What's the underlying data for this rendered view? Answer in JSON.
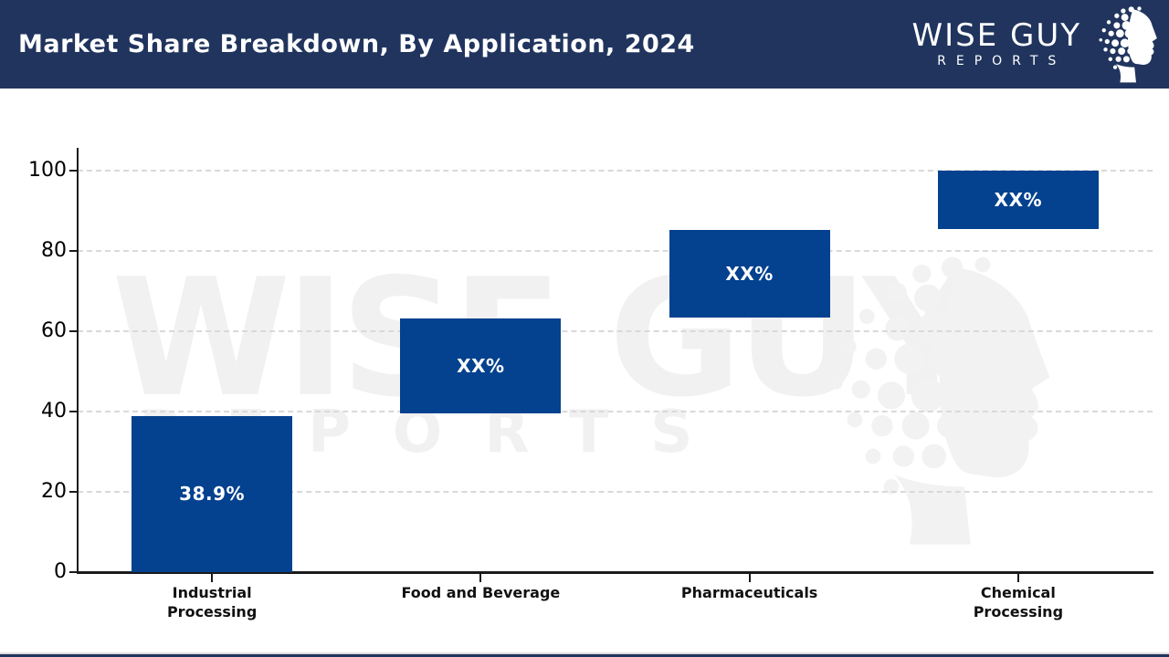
{
  "header": {
    "title": "Market Share Breakdown, By Application, 2024",
    "logo": {
      "line1": "WISE GUY",
      "line2": "REPORTS"
    }
  },
  "watermark": {
    "line1": "WISE GUY",
    "line2": "REPORTS"
  },
  "chart_data": {
    "type": "bar",
    "subtype": "floating-segment-waterfall",
    "title": "Market Share Breakdown, By Application, 2024",
    "categories": [
      "Industrial\nProcessing",
      "Food and Beverage",
      "Pharmaceuticals",
      "Chemical\nProcessing"
    ],
    "segments": [
      {
        "category": "Industrial Processing",
        "start": 0,
        "end": 38.9,
        "label": "38.9%"
      },
      {
        "category": "Food and Beverage",
        "start": 39.5,
        "end": 63.2,
        "label": "XX%"
      },
      {
        "category": "Pharmaceuticals",
        "start": 63.4,
        "end": 85.2,
        "label": "XX%"
      },
      {
        "category": "Chemical Processing",
        "start": 85.5,
        "end": 100,
        "label": "XX%"
      }
    ],
    "xlabel": "",
    "ylabel": "",
    "ylim": [
      0,
      100
    ],
    "yticks": [
      0,
      20,
      40,
      60,
      80,
      100
    ],
    "grid": true,
    "grid_style": "dashed",
    "legend": false,
    "bar_color": "#04418f",
    "bar_label_color": "#ffffff"
  },
  "colors": {
    "header_bg": "#20345e",
    "bar": "#04418f",
    "grid": "#d9d9d9",
    "axis": "#1a1a1a",
    "watermark": "#f1f1f1",
    "title_text": "#ffffff"
  }
}
